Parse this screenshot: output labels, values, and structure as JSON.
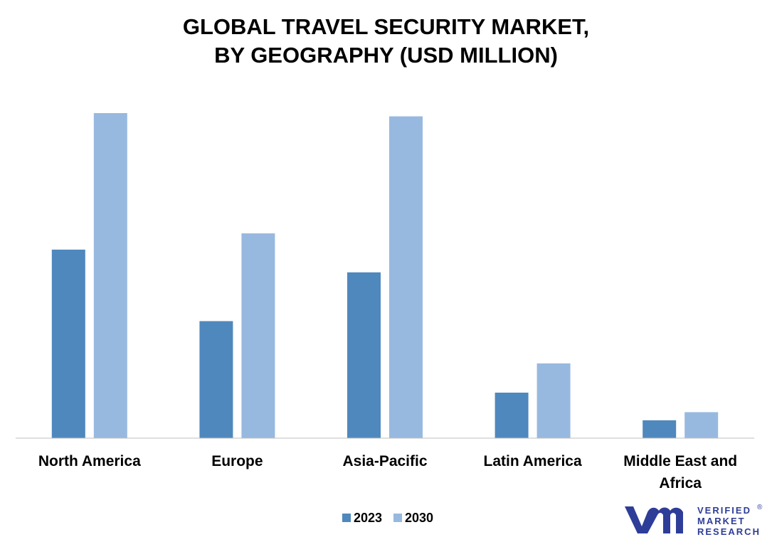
{
  "chart_data": {
    "type": "bar",
    "title": "GLOBAL TRAVEL SECURITY MARKET, BY GEOGRAPHY (USD MILLION)",
    "title_lines": [
      "GLOBAL TRAVEL SECURITY MARKET,",
      "BY GEOGRAPHY (USD MILLION)"
    ],
    "categories": [
      "North America",
      "Europe",
      "Asia-Pacific",
      "Latin America",
      "Middle East and Africa"
    ],
    "category_lines": [
      [
        "North America"
      ],
      [
        "Europe"
      ],
      [
        "Asia-Pacific"
      ],
      [
        "Latin America"
      ],
      [
        "Middle East and",
        "Africa"
      ]
    ],
    "series": [
      {
        "name": "2023",
        "color": "#4f88bd",
        "values": [
          58,
          36,
          51,
          14,
          5.5
        ]
      },
      {
        "name": "2030",
        "color": "#98b9df",
        "values": [
          100,
          63,
          99,
          23,
          8
        ]
      }
    ],
    "ylim": [
      0,
      100
    ],
    "grid": false,
    "legend_position": "bottom-center",
    "xlabel": "",
    "ylabel": ""
  },
  "logo": {
    "line1": "VERIFIED",
    "line2": "MARKET",
    "line3": "RESEARCH",
    "mark": "®",
    "color": "#2e3d98"
  }
}
